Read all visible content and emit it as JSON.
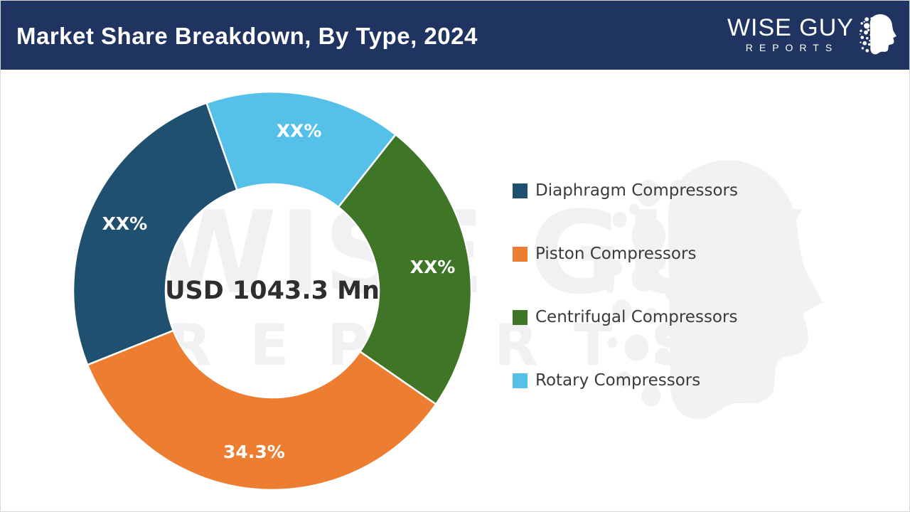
{
  "header": {
    "title": "Market Share Breakdown, By Type, 2024",
    "logo": {
      "line1": "WISE GUY",
      "line2": "REPORTS"
    }
  },
  "watermark": {
    "line1": "WISE GUY",
    "line2": "REPORTS"
  },
  "chart_data": {
    "type": "pie",
    "subtype": "donut",
    "title": "Market Share Breakdown, By Type, 2024",
    "center_label": "USD 1043.3 Mn",
    "start_angle_deg": 340.7,
    "legend_position": "right",
    "segments": [
      {
        "name": "Rotary Compressors",
        "displayed_label": "XX%",
        "value_pct": 16.0,
        "color": "#56c1e8"
      },
      {
        "name": "Centrifugal Compressors",
        "displayed_label": "XX%",
        "value_pct": 24.0,
        "color": "#3f7527"
      },
      {
        "name": "Piston Compressors",
        "displayed_label": "34.3%",
        "value_pct": 34.3,
        "color": "#ed7d31"
      },
      {
        "name": "Diaphragm Compressors",
        "displayed_label": "XX%",
        "value_pct": 25.7,
        "color": "#20506f"
      }
    ]
  },
  "legend": {
    "items": [
      {
        "label": "Diaphragm Compressors",
        "color": "#20506f"
      },
      {
        "label": "Piston Compressors",
        "color": "#ed7d31"
      },
      {
        "label": "Centrifugal Compressors",
        "color": "#3f7527"
      },
      {
        "label": "Rotary Compressors",
        "color": "#56c1e8"
      }
    ]
  }
}
